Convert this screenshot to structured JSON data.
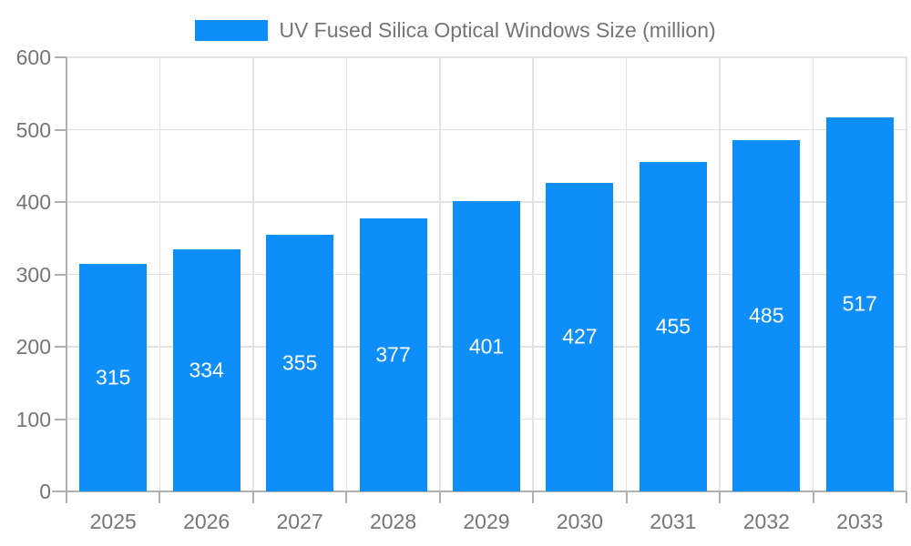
{
  "legend": {
    "label": "UV Fused Silica Optical Windows Size (million)"
  },
  "colors": {
    "bar": "#0d8ef8",
    "grid": "#e2e2e2",
    "axis": "#b0b0b0",
    "text": "#757575",
    "bar_label": "#ffffff",
    "background": "#ffffff"
  },
  "chart_data": {
    "type": "bar",
    "title": "UV Fused Silica Optical Windows Size (million)",
    "categories": [
      "2025",
      "2026",
      "2027",
      "2028",
      "2029",
      "2030",
      "2031",
      "2032",
      "2033"
    ],
    "values": [
      315,
      334,
      355,
      377,
      401,
      427,
      455,
      485,
      517
    ],
    "xlabel": "",
    "ylabel": "",
    "ylim": [
      0,
      600
    ],
    "yticks": [
      0,
      100,
      200,
      300,
      400,
      500,
      600
    ],
    "grid": true,
    "legend_position": "top-center",
    "value_labels": "inside-center"
  }
}
